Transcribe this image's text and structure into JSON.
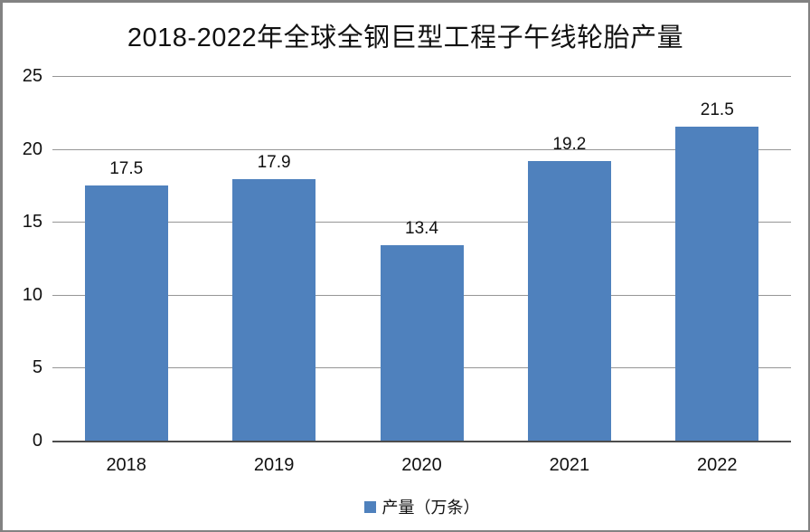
{
  "title": "2018-2022年全球全钢巨型工程子午线轮胎产量",
  "legend": {
    "label": "产量（万条）",
    "marker": "blue-square"
  },
  "colors": {
    "bar": "#4F81BD",
    "gridline": "#969696",
    "axis": "#4d4d4d",
    "border": "#828282",
    "text": "#111111",
    "background": "#ffffff"
  },
  "chart_data": {
    "type": "bar",
    "title": "2018-2022年全球全钢巨型工程子午线轮胎产量",
    "categories": [
      "2018",
      "2019",
      "2020",
      "2021",
      "2022"
    ],
    "series": [
      {
        "name": "产量（万条）",
        "values": [
          17.5,
          17.9,
          13.4,
          19.2,
          21.5
        ]
      }
    ],
    "data_labels": [
      "17.5",
      "17.9",
      "13.4",
      "19.2",
      "21.5"
    ],
    "xlabel": "",
    "ylabel": "",
    "ylim": [
      0,
      25
    ],
    "yticks": [
      0,
      5,
      10,
      15,
      20,
      25
    ],
    "grid": true,
    "legend_position": "bottom"
  }
}
